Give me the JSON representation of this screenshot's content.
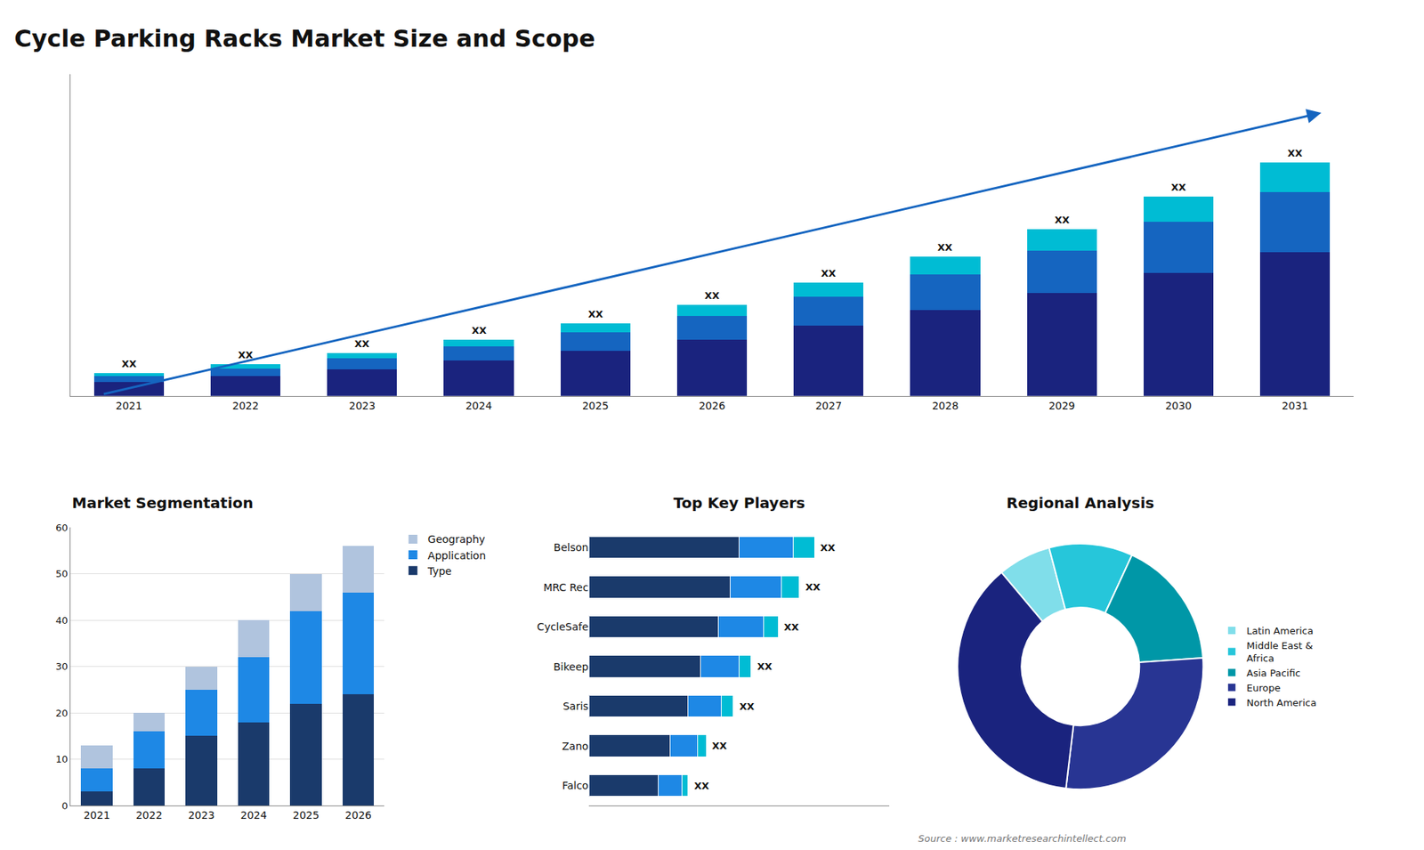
{
  "chart_data": [
    {
      "type": "bar",
      "title": "Cycle Parking Racks Market Size and Scope",
      "stacked": true,
      "categories": [
        "2021",
        "2022",
        "2023",
        "2024",
        "2025",
        "2026",
        "2027",
        "2028",
        "2029",
        "2030",
        "2031"
      ],
      "series": [
        {
          "color": "#1a237e",
          "values": [
            1.0,
            1.4,
            1.9,
            2.5,
            3.2,
            4.0,
            5.0,
            6.1,
            7.3,
            8.7,
            10.2
          ]
        },
        {
          "color": "#1565c0",
          "values": [
            0.4,
            0.55,
            0.75,
            1.0,
            1.3,
            1.65,
            2.0,
            2.5,
            3.0,
            3.6,
            4.2
          ]
        },
        {
          "color": "#00bcd4",
          "values": [
            0.2,
            0.28,
            0.38,
            0.5,
            0.65,
            0.82,
            1.0,
            1.25,
            1.5,
            1.8,
            2.1
          ]
        }
      ],
      "annotations": [
        "XX",
        "XX",
        "XX",
        "XX",
        "XX",
        "XX",
        "XX",
        "XX",
        "XX",
        "XX",
        "XX"
      ],
      "ylim": [
        0,
        22.77
      ],
      "tick_labels": "x",
      "grid": false
    },
    {
      "type": "bar",
      "title": "Market Segmentation",
      "stacked": true,
      "categories": [
        "2021",
        "2022",
        "2023",
        "2024",
        "2025",
        "2026"
      ],
      "series": [
        {
          "name": "Type",
          "color": "#1a3a6b",
          "values": [
            3,
            8,
            15,
            18,
            22,
            24
          ]
        },
        {
          "name": "Application",
          "color": "#1e88e5",
          "values": [
            5,
            8,
            10,
            14,
            20,
            22
          ]
        },
        {
          "name": "Geography",
          "color": "#b0c4de",
          "values": [
            5,
            4,
            5,
            8,
            8,
            10
          ]
        }
      ],
      "ylim": [
        0,
        60
      ],
      "yticks": [
        0,
        10,
        20,
        30,
        40,
        50,
        60
      ],
      "grid": true,
      "legend": "upper right"
    },
    {
      "type": "bar",
      "title": "Top Key Players",
      "orientation": "horizontal",
      "stacked": true,
      "categories": [
        "Belson",
        "MRC Rec",
        "CycleSafe",
        "Bikeep",
        "Saris",
        "Zano",
        "Falco"
      ],
      "series": [
        {
          "color": "#1a3a6b",
          "values": [
            0.5,
            0.47,
            0.43,
            0.37,
            0.33,
            0.27,
            0.23
          ]
        },
        {
          "color": "#1e88e5",
          "values": [
            0.18,
            0.17,
            0.15,
            0.13,
            0.11,
            0.09,
            0.08
          ]
        },
        {
          "color": "#00bcd4",
          "values": [
            0.07,
            0.06,
            0.05,
            0.04,
            0.04,
            0.03,
            0.02
          ]
        }
      ],
      "annotations": [
        "XX",
        "XX",
        "XX",
        "XX",
        "XX",
        "XX",
        "XX"
      ],
      "xlim": [
        0,
        1
      ],
      "tick_labels": "y",
      "grid": false
    },
    {
      "type": "pie",
      "title": "Regional Analysis",
      "categories": [
        "Latin America",
        "Middle East &\nAfrica",
        "Asia Pacific",
        "Europe",
        "North America"
      ],
      "values": [
        7,
        11,
        17,
        28,
        37
      ],
      "colors": [
        "#80deea",
        "#26c6da",
        "#0097a7",
        "#283593",
        "#1a237e"
      ],
      "legend": "right",
      "annotations": [
        "Source : www.marketresearchintellect.com"
      ]
    }
  ]
}
